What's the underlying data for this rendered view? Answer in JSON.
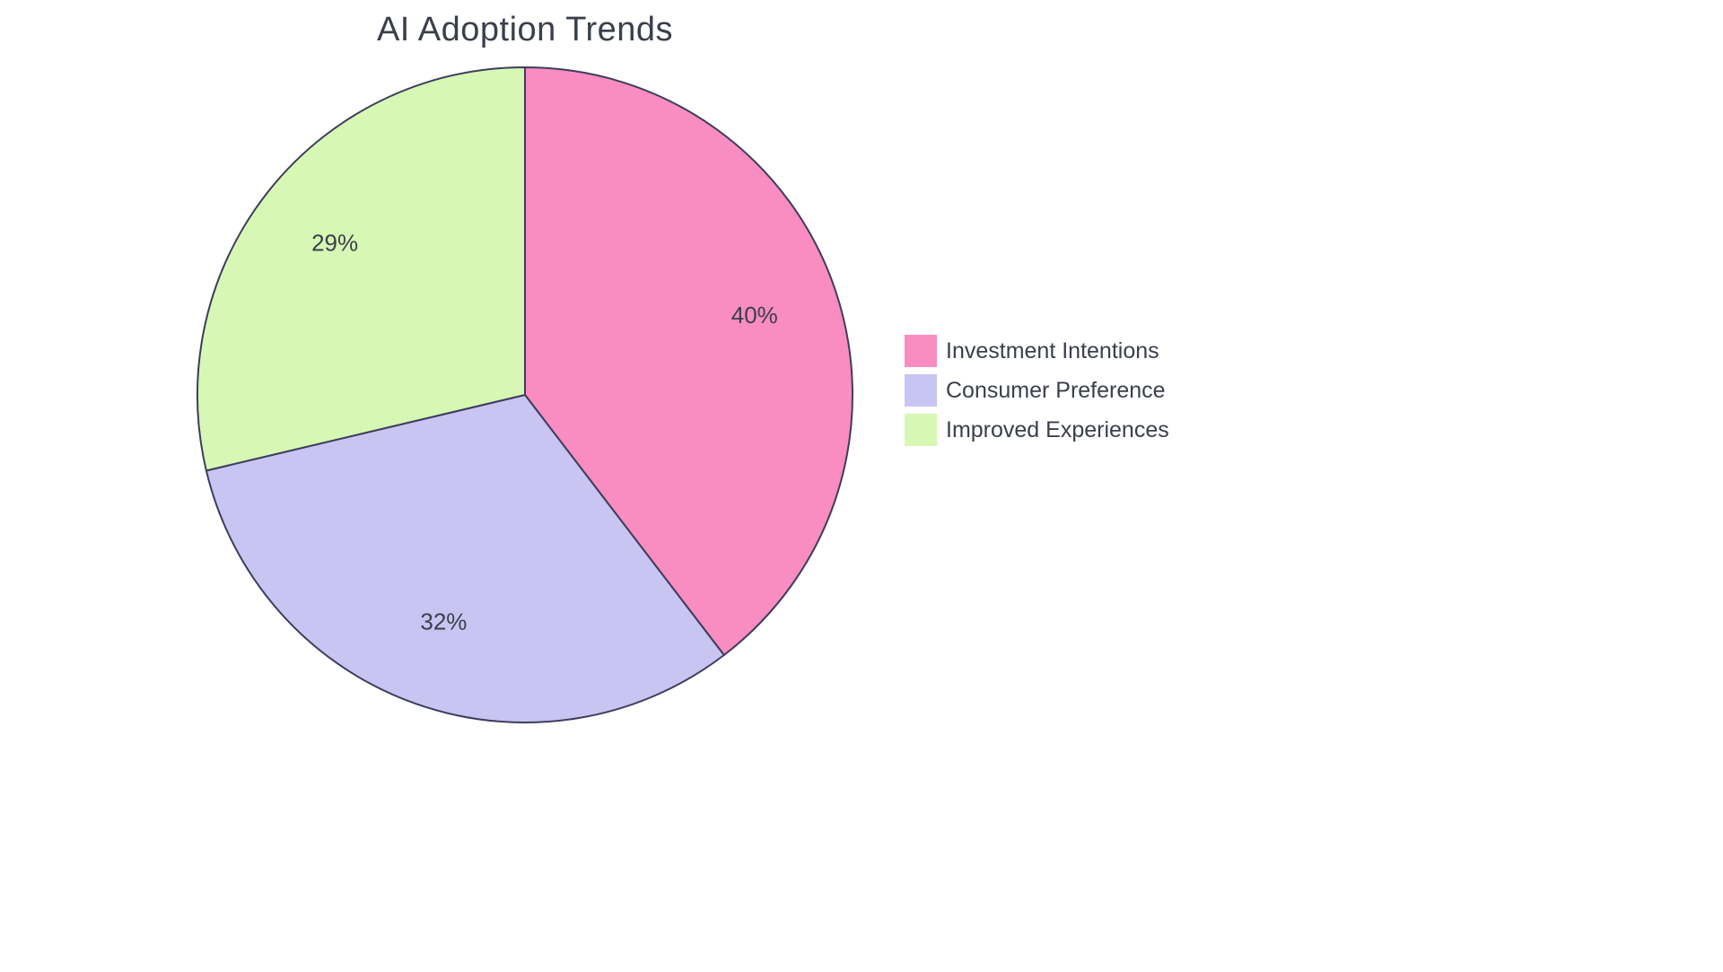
{
  "chart_data": {
    "type": "pie",
    "title": "AI Adoption Trends",
    "legend_position": "right",
    "direction": "clockwise",
    "start_angle_deg": 0,
    "stroke_color": "#3d3d5c",
    "stroke_width": 2,
    "label_color": "#3a3f4b",
    "background_color": "#ffffff",
    "slices": [
      {
        "label": "Investment Intentions",
        "value": 40,
        "percent_label": "40%",
        "color": "#f98cc0"
      },
      {
        "label": "Consumer Preference",
        "value": 32,
        "percent_label": "32%",
        "color": "#c8c5f2"
      },
      {
        "label": "Improved Experiences",
        "value": 29,
        "percent_label": "29%",
        "color": "#d6f8b4"
      }
    ]
  }
}
